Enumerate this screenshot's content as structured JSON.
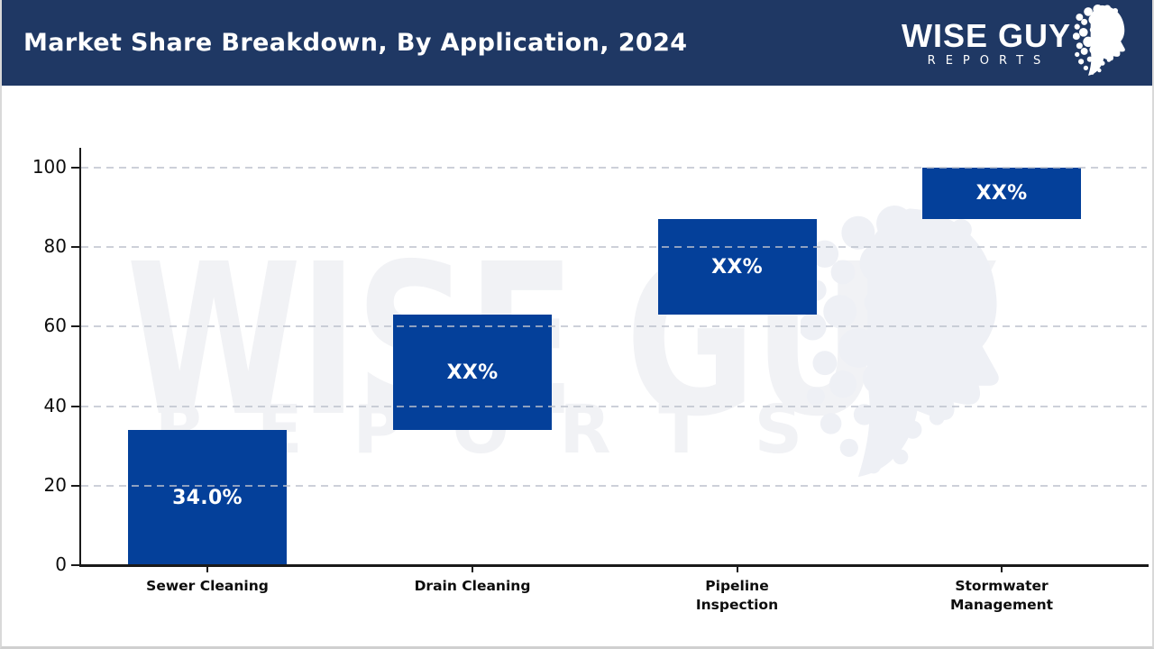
{
  "header": {
    "title": "Market Share Breakdown, By Application, 2024"
  },
  "logo": {
    "line1": "WISE GUY",
    "line2": "REPORTS"
  },
  "watermark": {
    "line1": "WISE GUY",
    "line2": "REPORTS"
  },
  "colors": {
    "header_bg": "#1f3864",
    "bar": "#04409a",
    "axis": "#1a1a1a",
    "grid": "#d9dce2",
    "watermark": "#f1f2f5"
  },
  "chart_data": {
    "type": "bar",
    "variant": "floating-waterfall",
    "title": "Market Share Breakdown, By Application, 2024",
    "categories": [
      "Sewer Cleaning",
      "Drain Cleaning",
      "Pipeline Inspection",
      "Stormwater Management"
    ],
    "categories_display": [
      [
        "Sewer Cleaning"
      ],
      [
        "Drain Cleaning"
      ],
      [
        "Pipeline",
        "Inspection"
      ],
      [
        "Stormwater",
        "Management"
      ]
    ],
    "segments": [
      {
        "category": "Sewer Cleaning",
        "label": "34.0%",
        "start": 0,
        "end": 34
      },
      {
        "category": "Drain Cleaning",
        "label": "XX%",
        "start": 34,
        "end": 63
      },
      {
        "category": "Pipeline Inspection",
        "label": "XX%",
        "start": 63,
        "end": 87
      },
      {
        "category": "Stormwater Management",
        "label": "XX%",
        "start": 87,
        "end": 100
      }
    ],
    "xlabel": "",
    "ylabel": "",
    "ylim": [
      0,
      100
    ],
    "yticks": [
      0,
      20,
      40,
      60,
      80,
      100
    ],
    "grid": "dashed-horizontal",
    "legend": "none",
    "bar_color": "#04409a",
    "bar_label_color": "#ffffff"
  }
}
